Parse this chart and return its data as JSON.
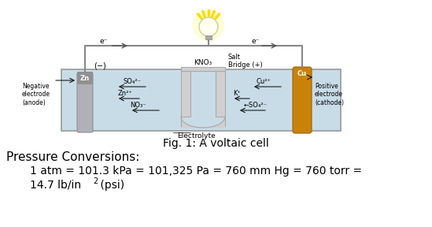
{
  "fig_caption": "Fig. 1: A voltaic cell",
  "pressure_title": "Pressure Conversions:",
  "pressure_line1": "1 atm = 101.3 kPa = 101,325 Pa = 760 mm Hg = 760 torr =",
  "pressure_line2": "14.7 lb/in² (psi)",
  "bg_color": "#ffffff",
  "fig_caption_fontsize": 10,
  "pressure_title_fontsize": 11,
  "pressure_body_fontsize": 10,
  "tank_color": "#c8dce8",
  "tank_edge": "#999999",
  "zn_color": "#b0b0b8",
  "cu_color": "#c8820a",
  "wire_color": "#888888",
  "sb_color": "#d0d0d0",
  "bulb_color": "#ffffcc",
  "ray_color": "#ffdd00"
}
